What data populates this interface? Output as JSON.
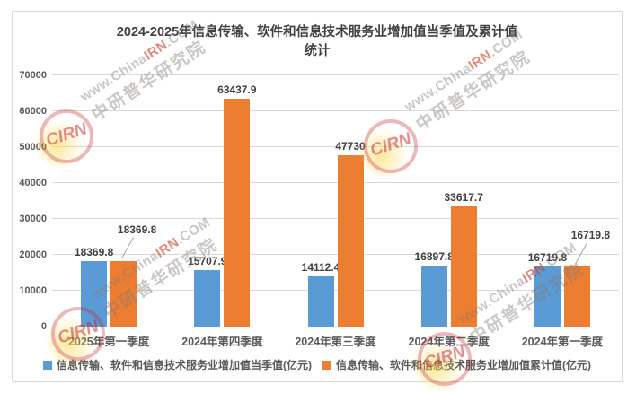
{
  "chart_data": {
    "type": "bar",
    "title": "2024-2025年信息传输、软件和信息技术服务业增加值当季值及累计值统计",
    "categories": [
      "2025年第一季度",
      "2024年第四季度",
      "2024年第三季度",
      "2024年第二季度",
      "2024年第一季度"
    ],
    "series": [
      {
        "name": "信息传输、软件和信息技术服务业增加值当季值(亿元)",
        "color": "#5B9BD5",
        "values": [
          18369.8,
          15707.9,
          14112.4,
          16897.8,
          16719.8
        ],
        "labels": [
          "18369.8",
          "15707.9",
          "14112.4",
          "16897.8",
          "16719.8"
        ],
        "callout_indices": []
      },
      {
        "name": "信息传输、软件和信息技术服务业增加值累计值(亿元)",
        "color": "#ED7D31",
        "values": [
          18369.8,
          63437.9,
          47730,
          33617.7,
          16719.8
        ],
        "labels": [
          "18369.8",
          "63437.9",
          "47730",
          "33617.7",
          "16719.8"
        ],
        "callout_indices": [
          0,
          4
        ]
      }
    ],
    "ylim": [
      0,
      70000
    ],
    "ytick_interval": 10000,
    "grid": true,
    "legend_position": "bottom",
    "styles": {
      "gridline_color": "#D9D9D9",
      "axis_line_color": "#BFBFBF",
      "tick_label_color": "#595959",
      "data_label_color": "#404040",
      "title_color": "#404040",
      "leader_line_color": "#A6A6A6"
    }
  },
  "watermark": {
    "url_prefix": "www.China",
    "url_highlight": "IRN",
    "url_suffix": ".COM",
    "org_name": "中研普华研究院",
    "logo_text": "CIRN"
  }
}
